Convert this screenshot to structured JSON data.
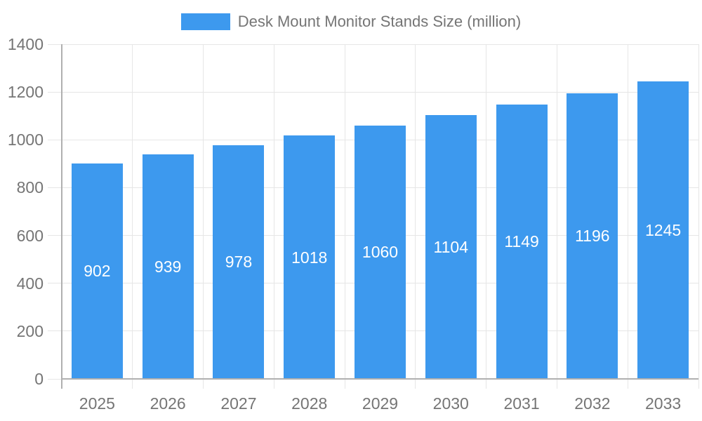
{
  "legend": {
    "label": "Desk Mount Monitor Stands Size (million)"
  },
  "chart_data": {
    "type": "bar",
    "title": "Desk Mount Monitor Stands Size (million)",
    "categories": [
      "2025",
      "2026",
      "2027",
      "2028",
      "2029",
      "2030",
      "2031",
      "2032",
      "2033"
    ],
    "values": [
      902,
      939,
      978,
      1018,
      1060,
      1104,
      1149,
      1196,
      1245
    ],
    "value_labels": [
      "902",
      "939",
      "978",
      "1018",
      "1060",
      "1104",
      "1149",
      "1196",
      "1245"
    ],
    "xlabel": "",
    "ylabel": "",
    "ylim": [
      0,
      1400
    ],
    "yticks": [
      0,
      200,
      400,
      600,
      800,
      1000,
      1200,
      1400
    ],
    "grid": true,
    "legend_position": "top",
    "colors": {
      "bar": "#3d99ee",
      "grid": "#e6e6e6",
      "axis": "#b0b0b0",
      "tick_label": "#757575",
      "legend_text": "#757575",
      "value_label": "#ffffff",
      "background": "#ffffff"
    }
  }
}
